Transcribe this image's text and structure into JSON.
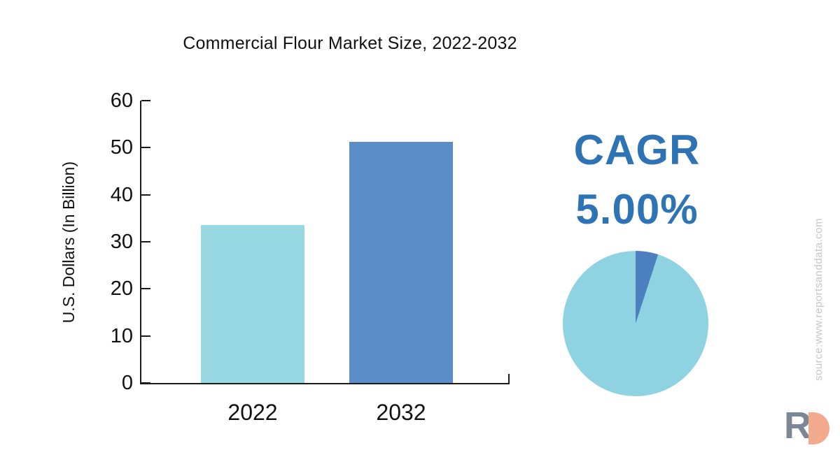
{
  "title": "Commercial Flour Market Size, 2022-2032",
  "cagr": {
    "label": "CAGR",
    "value": "5.00%",
    "color": "#2e74b5"
  },
  "source": "source:www.reportsanddata.com",
  "logo": {
    "r_letter": "R",
    "r_color": "#7d8695",
    "d_color": "#f3a98b"
  },
  "chart_data": [
    {
      "type": "bar",
      "title": "Commercial Flour Market Size, 2022-2032",
      "categories": [
        "2022",
        "2032"
      ],
      "values": [
        33.5,
        51.2
      ],
      "ylabel": "U.S. Dollars (In Billion)",
      "xlabel": "",
      "ylim": [
        0,
        60
      ],
      "yticks": [
        0,
        10,
        20,
        30,
        40,
        50,
        60
      ],
      "bar_colors": [
        "#97d8e3",
        "#5b8ec9"
      ],
      "grid": false,
      "legend": false
    },
    {
      "type": "pie",
      "labels": [
        "CAGR 5.00%",
        "remainder"
      ],
      "values": [
        5,
        95
      ],
      "colors": [
        "#4d80c0",
        "#8fd3e2"
      ],
      "start_angle_deg": 0,
      "direction": "clockwise",
      "legend": false
    }
  ]
}
